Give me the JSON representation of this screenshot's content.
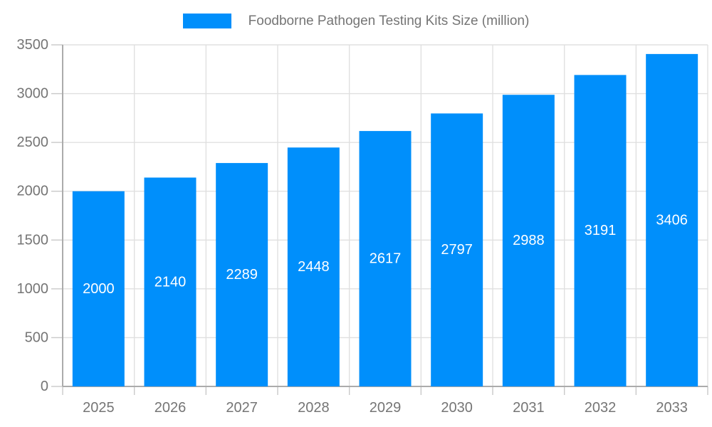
{
  "legend": {
    "label": "Foodborne Pathogen Testing Kits Size (million)"
  },
  "chart_data": {
    "type": "bar",
    "title": "Foodborne Pathogen Testing Kits Size (million)",
    "categories": [
      "2025",
      "2026",
      "2027",
      "2028",
      "2029",
      "2030",
      "2031",
      "2032",
      "2033"
    ],
    "series": [
      {
        "name": "Foodborne Pathogen Testing Kits Size (million)",
        "values": [
          2000,
          2140,
          2289,
          2448,
          2617,
          2797,
          2988,
          3191,
          3406
        ]
      }
    ],
    "xlabel": "",
    "ylabel": "",
    "ylim": [
      0,
      3500
    ],
    "yticks": [
      0,
      500,
      1000,
      1500,
      2000,
      2500,
      3000,
      3500
    ],
    "bar_value_labels": [
      2000,
      2140,
      2289,
      2448,
      2617,
      2797,
      2988,
      3191,
      3406
    ],
    "grid": true,
    "legend_position": "top",
    "colors": {
      "bar": "#008FFB",
      "bar_label": "#FFFFFF",
      "axis_text": "#757575",
      "legend_text": "#757575",
      "grid_line": "#E0E0E0",
      "axis_line": "#ABABAB",
      "tick_line": "#C9C9C9",
      "background": "#FFFFFF"
    }
  }
}
